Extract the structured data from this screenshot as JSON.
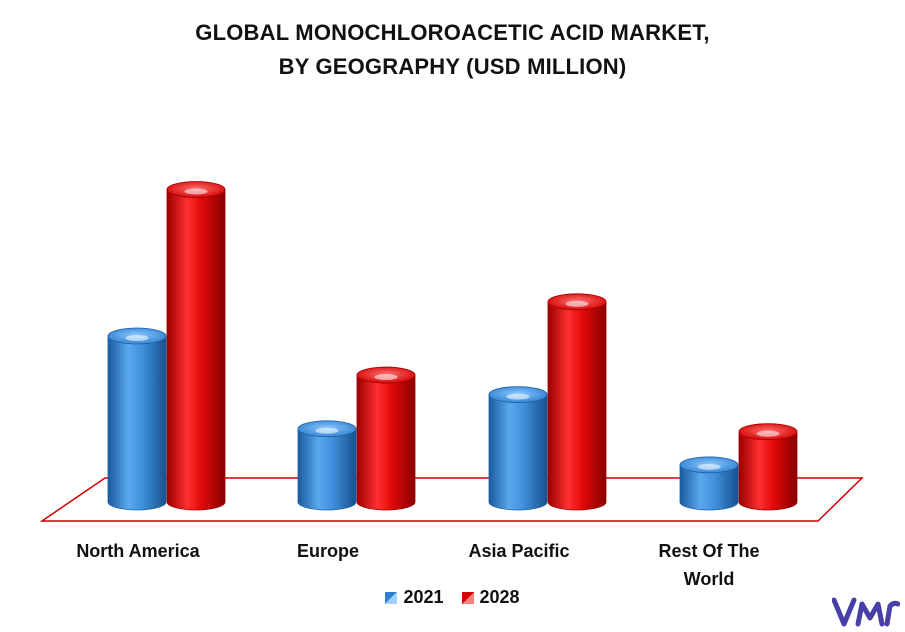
{
  "chart_data": {
    "type": "bar",
    "title": "GLOBAL MONOCHLOROACETIC ACID MARKET,",
    "subtitle": "BY GEOGRAPHY (USD MILLION)",
    "categories": [
      "North America",
      "Europe",
      "Asia Pacific",
      "Rest Of The World"
    ],
    "series": [
      {
        "name": "2021",
        "values": [
          170,
          75,
          110,
          38
        ],
        "color": "#2f7fd0"
      },
      {
        "name": "2028",
        "values": [
          320,
          130,
          205,
          72
        ],
        "color": "#d40000"
      }
    ],
    "ylim": [
      0,
      340
    ],
    "grid": false,
    "legend_position": "bottom"
  },
  "colors": {
    "floor": "#d40000",
    "blue": "#2f7fd0",
    "red": "#d40000",
    "logo": "#4a3fa8"
  },
  "logo_icon": "vmr-logo-icon"
}
